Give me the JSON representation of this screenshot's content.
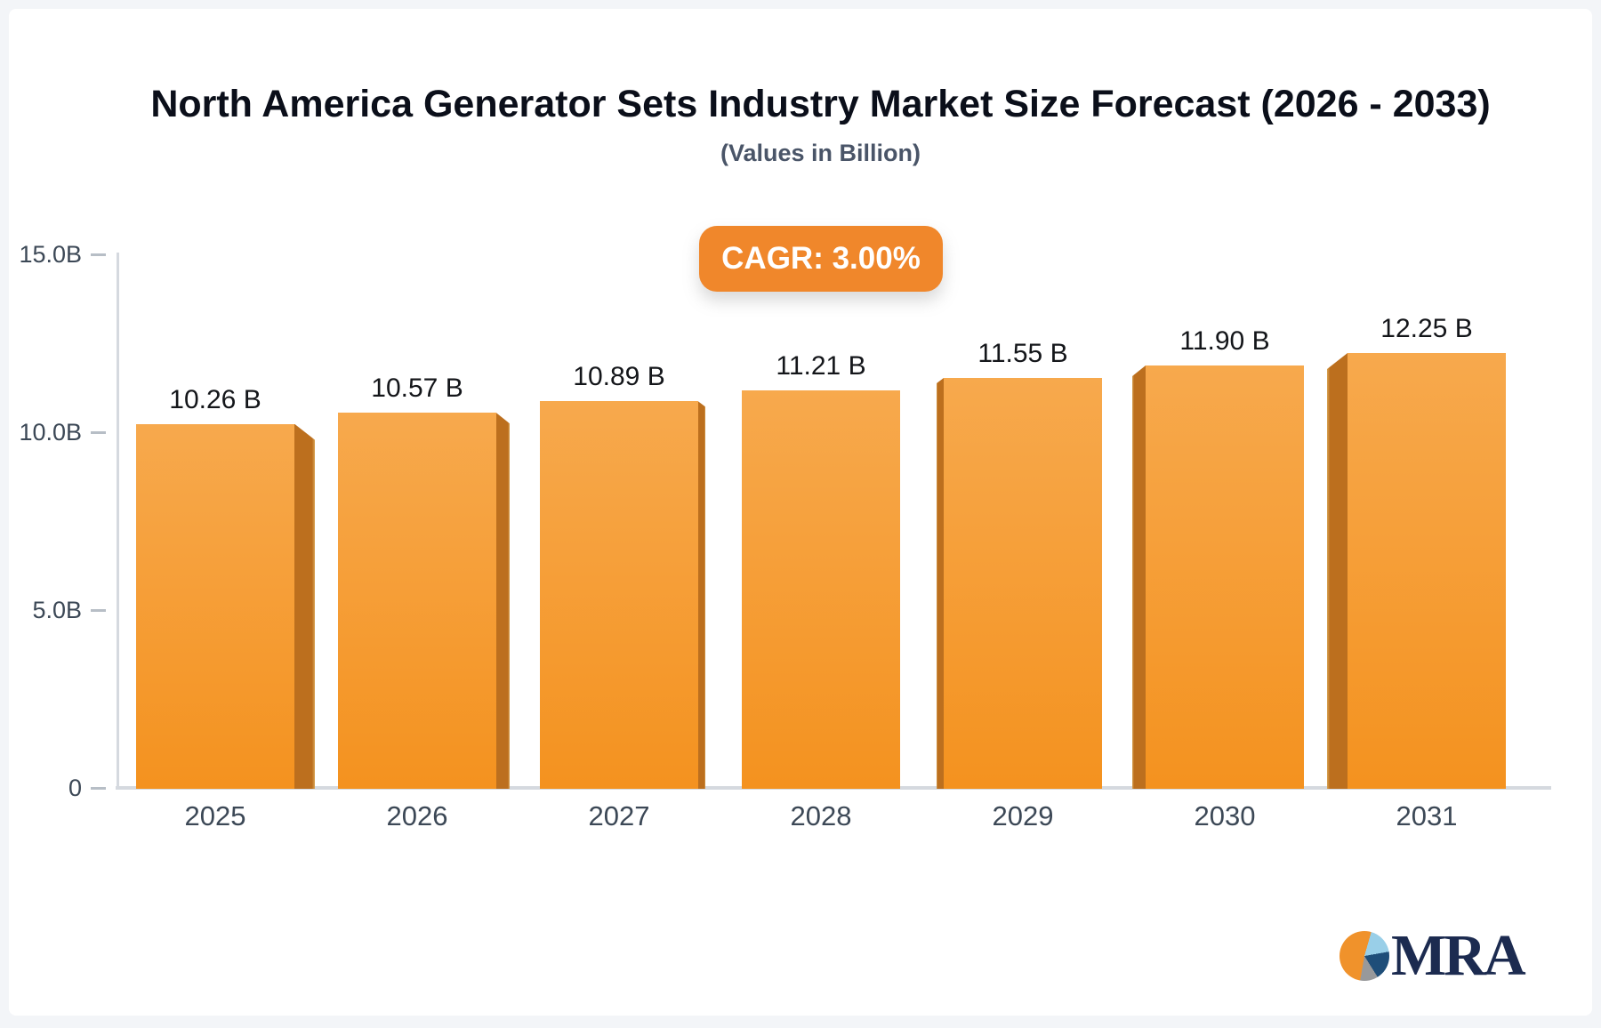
{
  "page": {
    "background": "#f3f5f8",
    "card_background": "#ffffff"
  },
  "header": {
    "title": "North America Generator Sets Industry Market Size Forecast (2026 - 2033)",
    "subtitle": "(Values in Billion)"
  },
  "badge": {
    "label": "CAGR: 3.00%",
    "background": "#f0872b",
    "text_color": "#ffffff"
  },
  "chart_data": {
    "type": "bar",
    "title": "North America Generator Sets Industry Market Size Forecast (2026 - 2033)",
    "subtitle": "(Values in Billion)",
    "cagr_annotation": "CAGR: 3.00%",
    "categories": [
      "2025",
      "2026",
      "2027",
      "2028",
      "2029",
      "2030",
      "2031"
    ],
    "values": [
      10.26,
      10.57,
      10.89,
      11.21,
      11.55,
      11.9,
      12.25
    ],
    "value_labels": [
      "10.26 B",
      "10.57 B",
      "10.89 B",
      "11.21 B",
      "11.55 B",
      "11.90 B",
      "12.25 B"
    ],
    "unit": "Billion",
    "ylim": [
      0,
      15
    ],
    "yticks": [
      {
        "label": "15.0B",
        "value": 15.0
      },
      {
        "label": "10.0B",
        "value": 10.0
      },
      {
        "label": "5.0B",
        "value": 5.0
      },
      {
        "label": "0",
        "value": 0
      }
    ],
    "grid": false,
    "legend": "none",
    "style": "3d-columns",
    "colors": {
      "bar_top": "#f7a94d",
      "bar_bottom": "#f4921f",
      "bar_side": "#bc6f1e",
      "bar_side_edge": "#d9a455",
      "axis_line": "#d5d9df",
      "tick": "#b7bec6",
      "value_label": "#14161a",
      "axis_label": "#3c4856"
    }
  },
  "logo": {
    "text": "MRA",
    "pie_colors": [
      "#f0922b",
      "#99cfe8",
      "#1f4e79",
      "#98999b"
    ],
    "text_color": "#1c2b50"
  }
}
